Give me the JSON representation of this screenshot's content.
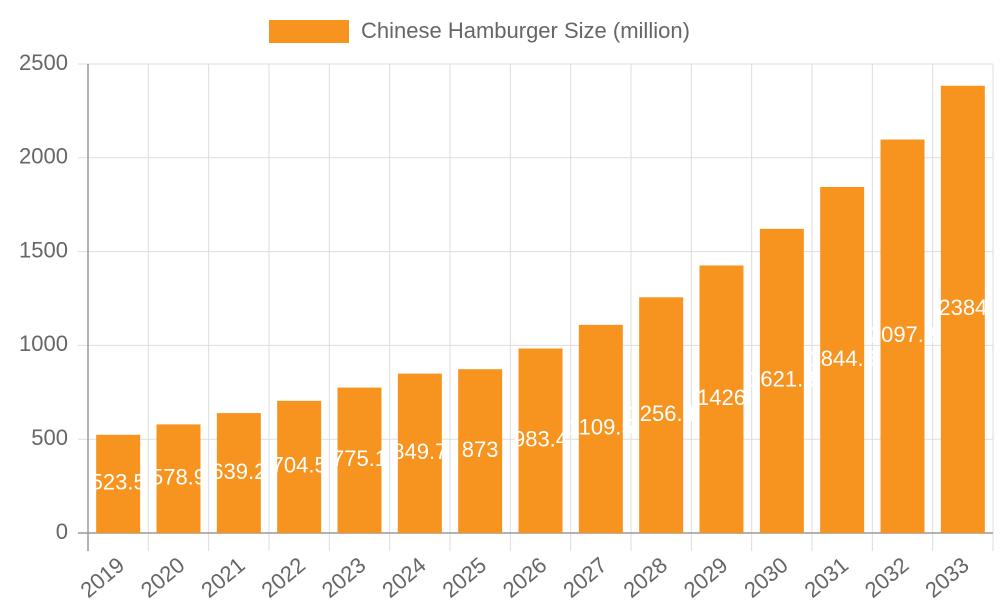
{
  "chart_data": {
    "type": "bar",
    "legend": "Chinese Hamburger Size (million)",
    "categories": [
      "2019",
      "2020",
      "2021",
      "2022",
      "2023",
      "2024",
      "2025",
      "2026",
      "2027",
      "2028",
      "2029",
      "2030",
      "2031",
      "2032",
      "2033"
    ],
    "values": [
      523.5,
      578.9,
      639.2,
      704.5,
      775.1,
      849.7,
      873,
      983.4,
      1109.5,
      1256.4,
      1426,
      1621.3,
      1844.6,
      2097.3,
      2384
    ],
    "color": "#f79420",
    "ylim": [
      0,
      2500
    ],
    "yticks": [
      0,
      500,
      1000,
      1500,
      2000,
      2500
    ],
    "grid": true
  }
}
